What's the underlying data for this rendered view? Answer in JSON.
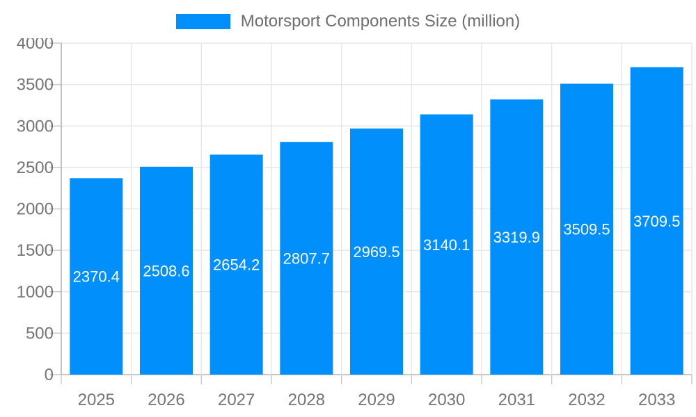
{
  "chart_data": {
    "type": "bar",
    "title": "Motorsport Components Size (million)",
    "categories": [
      "2025",
      "2026",
      "2027",
      "2028",
      "2029",
      "2030",
      "2031",
      "2032",
      "2033"
    ],
    "series": [
      {
        "name": "Motorsport Components Size (million)",
        "values": [
          2370.4,
          2508.6,
          2654.2,
          2807.7,
          2969.5,
          3140.1,
          3319.9,
          3509.5,
          3709.5
        ]
      }
    ],
    "value_labels": [
      "2370.4",
      "2508.6",
      "2654.2",
      "2807.7",
      "2969.5",
      "3140.1",
      "3319.9",
      "3509.5",
      "3709.5"
    ],
    "xlabel": "",
    "ylabel": "",
    "ylim": [
      0,
      4000
    ],
    "y_ticks": [
      0,
      500,
      1000,
      1500,
      2000,
      2500,
      3000,
      3500,
      4000
    ],
    "grid": true,
    "legend_position": "top",
    "colors": {
      "bar": "#008FFB",
      "grid_line": "#e7e7e7",
      "axis_line": "#b3b3b3",
      "tick_line": "#c9c9c9",
      "axis_label": "#757575",
      "title": "#6e6e6e",
      "value_label": "#ffffff",
      "background": "#ffffff"
    }
  }
}
